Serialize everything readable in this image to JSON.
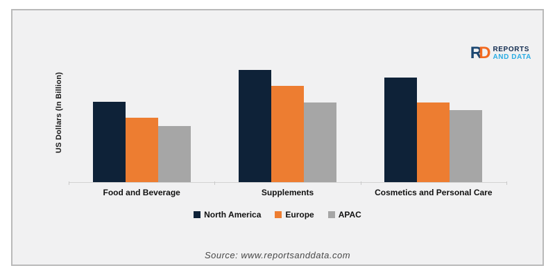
{
  "chart": {
    "source_text": "Source: www.reportsanddata.com"
  },
  "logo": {
    "monogram_r": "R",
    "monogram_d": "D",
    "line1": "REPORTS",
    "line2": "AND DATA"
  },
  "colors": {
    "north_america": "#0e2238",
    "europe": "#ed7d31",
    "apac": "#a6a6a6",
    "chart_background": "#f1f1f2",
    "box_border": "#b9b9b9",
    "axis_line": "#d2d2d2"
  },
  "chart_data": {
    "type": "bar",
    "title": "",
    "categories": [
      "Food and Beverage",
      "Supplements",
      "Cosmetics and Personal Care"
    ],
    "series": [
      {
        "name": "North America",
        "color": "#0e2238",
        "values": [
          58,
          81,
          75.5
        ]
      },
      {
        "name": "Europe",
        "color": "#ed7d31",
        "values": [
          46.5,
          69.5,
          57.5
        ]
      },
      {
        "name": "APAC",
        "color": "#a6a6a6",
        "values": [
          40.5,
          57.5,
          52
        ]
      }
    ],
    "xlabel": "",
    "ylabel": "US Dollars (In Billion)",
    "ylim": [
      0,
      100
    ],
    "grid": false,
    "y_tick_labels_shown": false,
    "legend_position": "bottom",
    "note": "No numeric axis tick labels are visible; values are relative estimates read from bar heights."
  }
}
